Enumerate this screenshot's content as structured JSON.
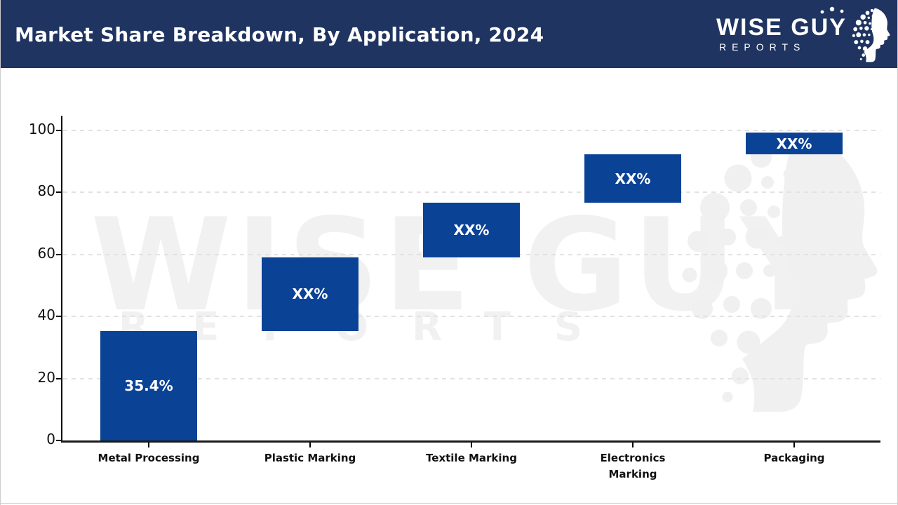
{
  "header": {
    "title": "Market Share Breakdown, By Application, 2024",
    "logo": {
      "brand_top": "WISE GUY",
      "brand_bottom": "REPORTS"
    }
  },
  "watermark": {
    "brand_top": "WISE GUY",
    "brand_bottom": "REPORTS"
  },
  "colors": {
    "header_bg": "#1f3461",
    "bar_blue": "#0a4296",
    "watermark_gray": "#f1f1f1",
    "grid_gray": "#e2e2e2",
    "border_gray": "#cccccc"
  },
  "chart_data": {
    "type": "bar",
    "subtype": "waterfall",
    "title": "Market Share Breakdown, By Application, 2024",
    "xlabel": "",
    "ylabel": "",
    "categories": [
      "Metal Processing",
      "Plastic Marking",
      "Textile Marking",
      "Electronics Marking",
      "Packaging"
    ],
    "bars": [
      {
        "category": "Metal Processing",
        "start": 0,
        "end": 35.4,
        "label": "35.4%"
      },
      {
        "category": "Plastic Marking",
        "start": 35.4,
        "end": 59.1,
        "label": "XX%"
      },
      {
        "category": "Textile Marking",
        "start": 59.1,
        "end": 76.6,
        "label": "XX%"
      },
      {
        "category": "Electronics\nMarking",
        "start": 76.8,
        "end": 92.2,
        "label": "XX%"
      },
      {
        "category": "Packaging",
        "start": 92.2,
        "end": 99.4,
        "label": "XX%"
      }
    ],
    "ylim": [
      0,
      105
    ],
    "yticks": [
      0,
      20,
      40,
      60,
      80,
      100
    ],
    "grid": "dashed-horizontal",
    "legend": "none",
    "bar_color": "#0a4296",
    "bar_label_color": "#ffffff"
  }
}
